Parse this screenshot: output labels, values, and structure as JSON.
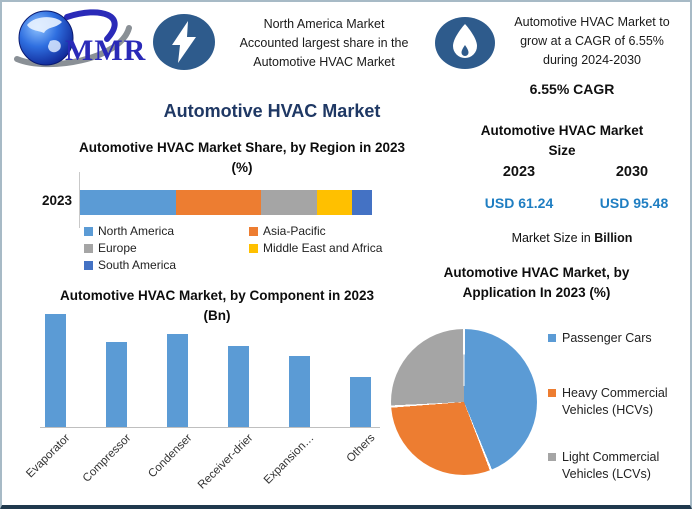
{
  "colors": {
    "navy_title": "#1F3864",
    "icon_bg": "#2E5B8C",
    "usd_blue": "#1F7EC2",
    "series_blue": "#5B9BD5",
    "series_orange": "#ED7D31",
    "series_gray": "#A5A5A5",
    "series_yellow": "#FFC000",
    "series_dark_blue": "#4472C4"
  },
  "header": {
    "logo_text": "MMR",
    "left_callout_lines": [
      "North America Market",
      "Accounted largest share in the",
      "Automotive HVAC Market"
    ],
    "right_callout_lines": [
      "Automotive HVAC Market to",
      "grow at a CAGR of 6.55%",
      "during 2024-2030"
    ],
    "cagr_badge": "6.55% CAGR"
  },
  "main_title": "Automotive HVAC Market",
  "market_size_panel": {
    "title": "Automotive HVAC Market Size",
    "year_left": "2023",
    "year_right": "2030",
    "value_left": "USD 61.24",
    "value_right": "USD 95.48",
    "note_prefix": "Market Size in ",
    "note_bold": "Billion"
  },
  "chart_data": [
    {
      "type": "bar",
      "subtype": "horizontal-stacked",
      "title": "Automotive HVAC Market Share, by Region in 2023 (%)",
      "categories": [
        "2023"
      ],
      "series": [
        {
          "name": "North America",
          "value": 33,
          "color": "#5B9BD5"
        },
        {
          "name": "Asia-Pacific",
          "value": 29,
          "color": "#ED7D31"
        },
        {
          "name": "Europe",
          "value": 19,
          "color": "#A5A5A5"
        },
        {
          "name": "Middle East and Africa",
          "value": 12,
          "color": "#FFC000"
        },
        {
          "name": "South America",
          "value": 7,
          "color": "#4472C4"
        }
      ],
      "xlim": [
        0,
        100
      ],
      "legend_position": "bottom",
      "grid": false
    },
    {
      "type": "bar",
      "title": "Automotive HVAC Market, by Component in 2023 (Bn)",
      "categories": [
        "Evaporator",
        "Compressor",
        "Condenser",
        "Receiver-drier",
        "Expansion…",
        "Others"
      ],
      "values": [
        100,
        75,
        82,
        72,
        63,
        44
      ],
      "value_scale": "relative (tallest bar = 100); no value axis shown in chart",
      "color": "#5B9BD5",
      "grid": false
    },
    {
      "type": "pie",
      "title": "Automotive HVAC Market, by Application In 2023 (%)",
      "labels": [
        "Passenger Cars",
        "Heavy Commercial Vehicles (HCVs)",
        "Light Commercial Vehicles (LCVs)"
      ],
      "values": [
        44,
        30,
        26
      ],
      "colors": [
        "#5B9BD5",
        "#ED7D31",
        "#A5A5A5"
      ],
      "start_angle_deg": 0,
      "direction": "clockwise",
      "legend_position": "right"
    }
  ]
}
